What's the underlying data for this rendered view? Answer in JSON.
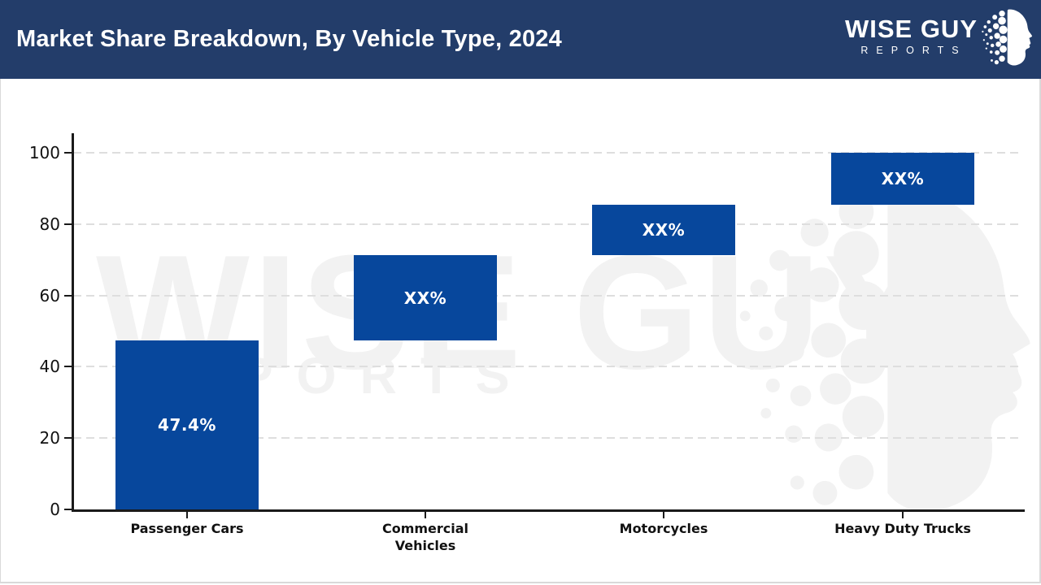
{
  "header": {
    "title": "Market Share Breakdown, By Vehicle Type, 2024",
    "brand": {
      "name": "WISE GUY",
      "sub": "REPORTS"
    }
  },
  "watermark": {
    "line1": "WISE GUY",
    "line2": "REPORTS"
  },
  "colors": {
    "header_bg": "#233d6a",
    "bar": "#07479c",
    "grid": "#dedede",
    "axis": "#1a1a1a",
    "watermark": "#f2f2f2",
    "page_border": "#d9d9d9",
    "bar_label": "#ffffff",
    "tick_text": "#111111"
  },
  "chart_data": {
    "type": "bar",
    "subtype": "waterfall",
    "title": "Market Share Breakdown, By Vehicle Type, 2024",
    "categories": [
      "Passenger Cars",
      "Commercial\nVehicles",
      "Motorcycles",
      "Heavy Duty Trucks"
    ],
    "bars": [
      {
        "category": "Passenger Cars",
        "start": 0,
        "end": 47.4,
        "label": "47.4%"
      },
      {
        "category": "Commercial\nVehicles",
        "start": 47.4,
        "end": 71.2,
        "label": "XX%"
      },
      {
        "category": "Motorcycles",
        "start": 71.2,
        "end": 85.5,
        "label": "XX%"
      },
      {
        "category": "Heavy Duty Trucks",
        "start": 85.5,
        "end": 100,
        "label": "XX%"
      }
    ],
    "yticks": [
      0,
      20,
      40,
      60,
      80,
      100
    ],
    "ylim": [
      0,
      105
    ],
    "xlabel": "",
    "ylabel": "",
    "grid": "horizontal-dashed",
    "legend": "none"
  }
}
